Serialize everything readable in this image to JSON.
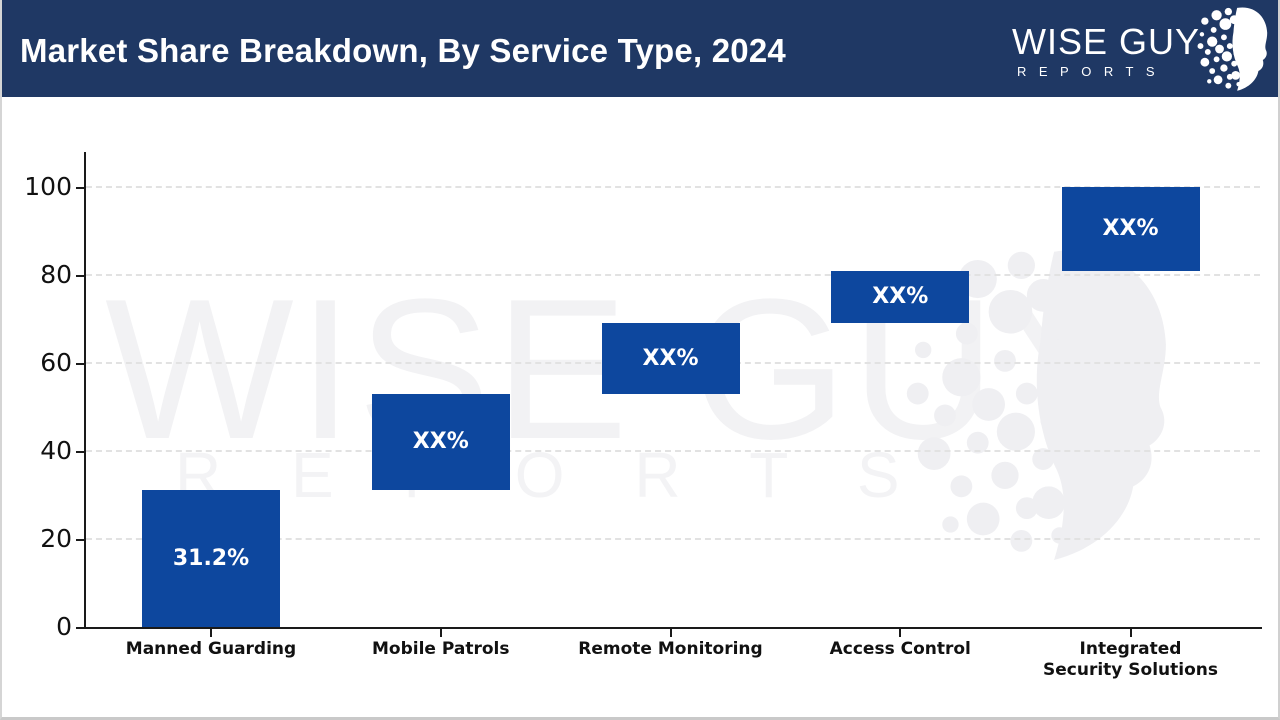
{
  "header": {
    "title": "Market Share Breakdown, By Service Type, 2024",
    "bg_color": "#1f3864",
    "logo": {
      "line1": "WISE GUY",
      "line2": "REPORTS",
      "icon": "dotted-head-profile"
    }
  },
  "watermark": {
    "line1": "WISE GUY",
    "line2": "R E P O R T S",
    "icon": "dotted-head-profile"
  },
  "chart_data": {
    "type": "bar",
    "subtype": "waterfall",
    "title": "Market Share Breakdown, By Service Type, 2024",
    "categories": [
      "Manned Guarding",
      "Mobile Patrols",
      "Remote Monitoring",
      "Access Control",
      "Integrated\nSecurity Solutions"
    ],
    "segments": [
      {
        "category": "Manned Guarding",
        "start": 0,
        "end": 31.2,
        "label": "31.2%"
      },
      {
        "category": "Mobile Patrols",
        "start": 31.2,
        "end": 53,
        "label": "XX%"
      },
      {
        "category": "Remote Monitoring",
        "start": 53,
        "end": 69,
        "label": "XX%"
      },
      {
        "category": "Access Control",
        "start": 69,
        "end": 81,
        "label": "XX%"
      },
      {
        "category": "Integrated Security Solutions",
        "start": 81,
        "end": 100,
        "label": "XX%"
      }
    ],
    "y_ticks": [
      0,
      20,
      40,
      60,
      80,
      100
    ],
    "ylim": [
      0,
      100
    ],
    "grid": "horizontal-dashed",
    "legend": "none",
    "bar_color": "#0d479e",
    "bar_label_color": "#ffffff",
    "axis_color": "#1a1a1a",
    "gridline_color": "#e2e2e2",
    "xlabel": "",
    "ylabel": ""
  }
}
